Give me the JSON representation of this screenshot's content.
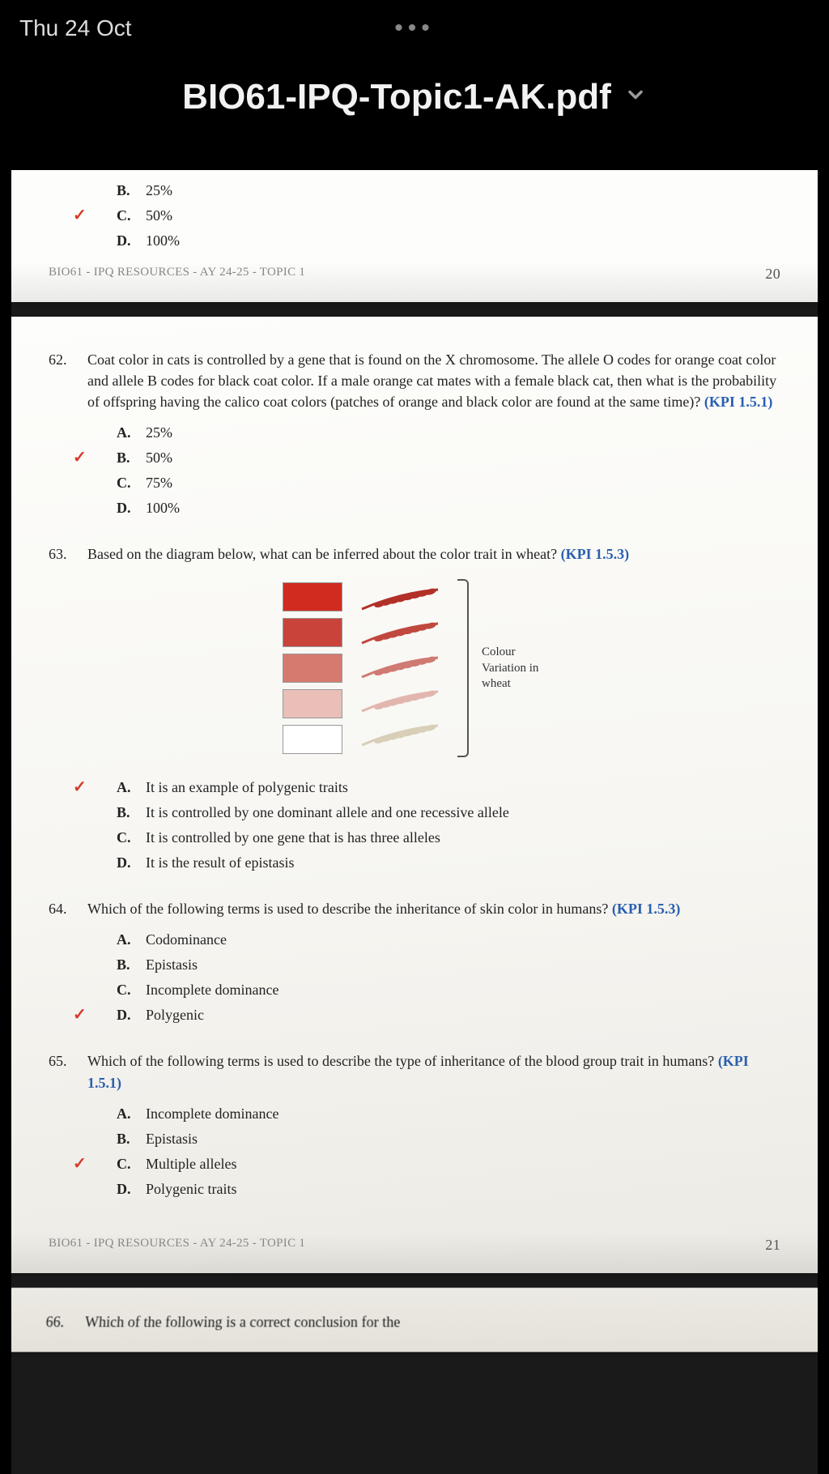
{
  "status": {
    "date": "Thu 24 Oct"
  },
  "titlebar": {
    "filename": "BIO61-IPQ-Topic1-AK.pdf"
  },
  "footer": {
    "resource_line": "BIO61 - IPQ RESOURCES - AY 24-25 - TOPIC 1",
    "page20": "20",
    "page21": "21"
  },
  "q61_tail": {
    "options": [
      {
        "letter": "B.",
        "text": "25%",
        "correct": false
      },
      {
        "letter": "C.",
        "text": "50%",
        "correct": true
      },
      {
        "letter": "D.",
        "text": "100%",
        "correct": false
      }
    ]
  },
  "q62": {
    "num": "62.",
    "text": "Coat color in cats is controlled by a gene that is found on the X chromosome. The allele O codes for orange coat color and allele B codes for black coat color. If a male orange cat mates with a female black cat, then what is the probability of offspring having the calico coat colors (patches of orange and black color are found at the same time)? ",
    "kpi": "(KPI 1.5.1)",
    "options": [
      {
        "letter": "A.",
        "text": "25%",
        "correct": false
      },
      {
        "letter": "B.",
        "text": "50%",
        "correct": true
      },
      {
        "letter": "C.",
        "text": "75%",
        "correct": false
      },
      {
        "letter": "D.",
        "text": "100%",
        "correct": false
      }
    ]
  },
  "q63": {
    "num": "63.",
    "text": "Based on the diagram below, what can be inferred about the color trait in wheat? ",
    "kpi": "(KPI 1.5.3)",
    "diagram": {
      "swatch_colors": [
        "#d12b20",
        "#c8443a",
        "#d67a70",
        "#e9bfb8",
        "#ffffff"
      ],
      "wheat_colors": [
        "#b23028",
        "#c0483f",
        "#cf7a72",
        "#e2b6af",
        "#d9cfb8"
      ],
      "caption": "Colour Variation in wheat"
    },
    "options": [
      {
        "letter": "A.",
        "text": "It is an example of polygenic traits",
        "correct": true
      },
      {
        "letter": "B.",
        "text": "It is controlled by one dominant allele and one recessive allele",
        "correct": false
      },
      {
        "letter": "C.",
        "text": "It is controlled by one gene that is has three alleles",
        "correct": false
      },
      {
        "letter": "D.",
        "text": "It is the result of epistasis",
        "correct": false
      }
    ]
  },
  "q64": {
    "num": "64.",
    "text": "Which of the following terms is used to describe the inheritance of skin color in humans? ",
    "kpi": "(KPI 1.5.3)",
    "options": [
      {
        "letter": "A.",
        "text": "Codominance",
        "correct": false
      },
      {
        "letter": "B.",
        "text": "Epistasis",
        "correct": false
      },
      {
        "letter": "C.",
        "text": "Incomplete dominance",
        "correct": false
      },
      {
        "letter": "D.",
        "text": "Polygenic",
        "correct": true
      }
    ]
  },
  "q65": {
    "num": "65.",
    "text": "Which of the following terms is used to describe the type of inheritance of the blood group trait in humans? ",
    "kpi": "(KPI 1.5.1)",
    "options": [
      {
        "letter": "A.",
        "text": "Incomplete dominance",
        "correct": false
      },
      {
        "letter": "B.",
        "text": "Epistasis",
        "correct": false
      },
      {
        "letter": "C.",
        "text": "Multiple alleles",
        "correct": true
      },
      {
        "letter": "D.",
        "text": "Polygenic traits",
        "correct": false
      }
    ]
  },
  "q66": {
    "num": "66.",
    "text": "Which of the following is a correct conclusion for the "
  }
}
